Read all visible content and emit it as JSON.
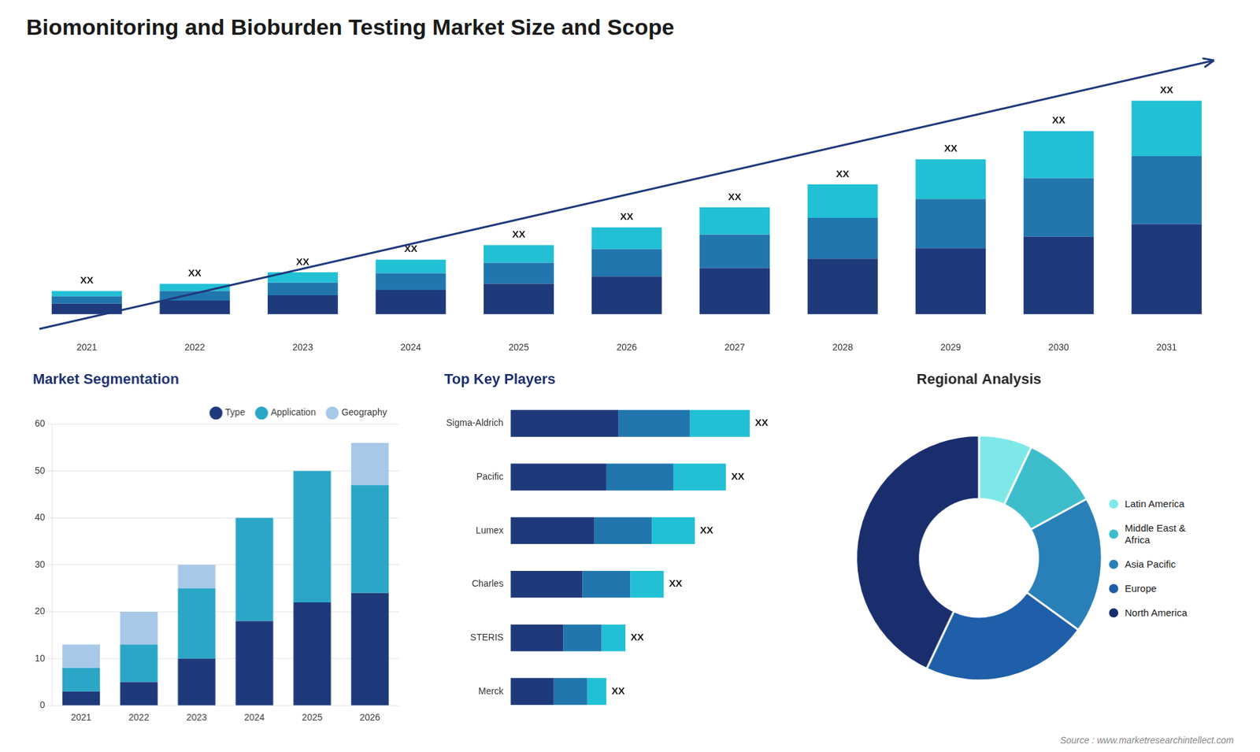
{
  "title": "Biomonitoring and Bioburden Testing Market Size and Scope",
  "annotations": [
    "Source : www.marketresearchintellect.com"
  ],
  "chart_data": [
    {
      "type": "bar",
      "stacked": true,
      "categories": [
        "2021",
        "2022",
        "2023",
        "2024",
        "2025",
        "2026",
        "2027",
        "2028",
        "2029",
        "2030",
        "2031"
      ],
      "series": [
        {
          "color": "#1e3a7b",
          "values": [
            1.0,
            1.3,
            1.8,
            2.3,
            2.9,
            3.6,
            4.4,
            5.3,
            6.3,
            7.4,
            8.6
          ]
        },
        {
          "color": "#2176ae",
          "values": [
            0.7,
            0.9,
            1.2,
            1.6,
            2.0,
            2.6,
            3.2,
            3.9,
            4.7,
            5.6,
            6.5
          ]
        },
        {
          "color": "#22c0d4",
          "values": [
            0.5,
            0.7,
            1.0,
            1.3,
            1.7,
            2.1,
            2.6,
            3.2,
            3.8,
            4.5,
            5.3
          ]
        }
      ],
      "ylim": [
        -2.04,
        24.888
      ],
      "annotations": [
        "XX",
        "XX",
        "XX",
        "XX",
        "XX",
        "XX",
        "XX",
        "XX",
        "XX",
        "XX",
        "XX"
      ],
      "tick_labels": "x",
      "grid": false
    },
    {
      "type": "bar",
      "title": "Market Segmentation",
      "stacked": true,
      "categories": [
        "2021",
        "2022",
        "2023",
        "2024",
        "2025",
        "2026"
      ],
      "series": [
        {
          "name": "Type",
          "color": "#1e3a7b",
          "values": [
            3,
            5,
            10,
            18,
            22,
            24
          ]
        },
        {
          "name": "Application",
          "color": "#2ba6c6",
          "values": [
            5,
            8,
            15,
            22,
            28,
            23
          ]
        },
        {
          "name": "Geography",
          "color": "#a8c8e8",
          "values": [
            5,
            7,
            5,
            0,
            0,
            9
          ]
        }
      ],
      "ylim": [
        0,
        60
      ],
      "yticks": [
        0,
        10,
        20,
        30,
        40,
        50,
        60
      ],
      "grid": true,
      "legend": "top"
    },
    {
      "type": "bar",
      "title": "Top Key Players",
      "stacked": true,
      "orientation": "horizontal",
      "categories": [
        "Sigma-Aldrich",
        "Pacific",
        "Lumex",
        "Charles",
        "STERIS",
        "Merck"
      ],
      "series": [
        {
          "color": "#1e3a7b",
          "values": [
            4.5,
            4.0,
            3.5,
            3.0,
            2.2,
            1.8
          ]
        },
        {
          "color": "#2176ae",
          "values": [
            3.0,
            2.8,
            2.4,
            2.0,
            1.6,
            1.4
          ]
        },
        {
          "color": "#22c0d4",
          "values": [
            2.5,
            2.2,
            1.8,
            1.4,
            1.0,
            0.8
          ]
        }
      ],
      "xlim": [
        0,
        12.5
      ],
      "annotations": [
        "XX",
        "XX",
        "XX",
        "XX",
        "XX",
        "XX"
      ],
      "tick_labels": "y",
      "grid": false
    },
    {
      "type": "doughnut",
      "title": "Regional Analysis",
      "categories": [
        "Latin America",
        "Middle East &\nAfrica",
        "Asia Pacific",
        "Europe",
        "North America"
      ],
      "values": [
        7,
        10,
        18,
        22,
        43
      ],
      "colors": [
        "#7ee8e8",
        "#3dbdcc",
        "#2980b9",
        "#1f5ea8",
        "#1a2e6e"
      ],
      "legend": "right"
    }
  ]
}
